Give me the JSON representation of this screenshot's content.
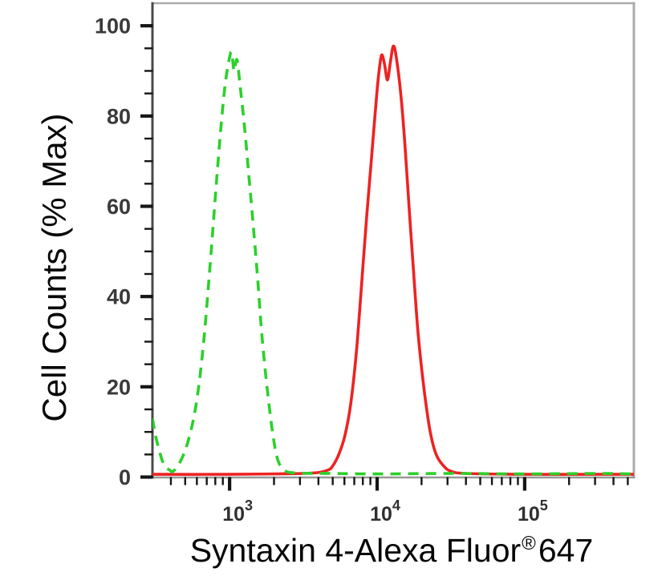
{
  "figure": {
    "ylabel": "Cell Counts (% Max)",
    "xlabel": {
      "prefix": "Syntaxin 4-Alexa Fluor",
      "registered_mark": "®",
      "suffix": "647"
    }
  },
  "chart_data": {
    "type": "line",
    "subtype": "flow-cytometry-histogram-overlay",
    "title": "",
    "xlabel": "Syntaxin 4-Alexa Fluor® 647",
    "ylabel": "Cell Counts (% Max)",
    "grid": false,
    "legend": "none",
    "x_scale": "log10",
    "x_axis": {
      "range": [
        300,
        550000
      ],
      "major_ticks": [
        1000,
        10000,
        100000
      ],
      "major_tick_labels": [
        {
          "base": "10",
          "exp": "3"
        },
        {
          "base": "10",
          "exp": "4"
        },
        {
          "base": "10",
          "exp": "5"
        }
      ],
      "minor_ticks": [
        400,
        500,
        600,
        700,
        800,
        900,
        2000,
        3000,
        4000,
        5000,
        6000,
        7000,
        8000,
        9000,
        20000,
        30000,
        40000,
        50000,
        60000,
        70000,
        80000,
        90000,
        200000,
        300000,
        400000,
        500000
      ]
    },
    "y_axis": {
      "range": [
        0,
        105
      ],
      "major_ticks": [
        0,
        20,
        40,
        60,
        80,
        100
      ],
      "major_tick_labels": [
        "0",
        "20",
        "40",
        "60",
        "80",
        "100"
      ],
      "minor_ticks": [
        5,
        10,
        15,
        25,
        30,
        35,
        45,
        50,
        55,
        65,
        70,
        75,
        85,
        90,
        95
      ]
    },
    "frame_color": "#ababab",
    "axis_color": "#4a4a4a",
    "tick_color": "#161616",
    "tick_label_color": "#3a3a3a",
    "series": [
      {
        "name": "red-solid-histogram",
        "color": "#ee2222",
        "line_style": "solid",
        "points": [
          [
            300,
            0.6
          ],
          [
            1000,
            0.6
          ],
          [
            1995,
            0.7
          ],
          [
            3162,
            0.8
          ],
          [
            3981,
            1.0
          ],
          [
            4677,
            1.6
          ],
          [
            5012,
            2.5
          ],
          [
            5495,
            5
          ],
          [
            6026,
            9
          ],
          [
            6607,
            16
          ],
          [
            7244,
            28
          ],
          [
            7943,
            45
          ],
          [
            8511,
            58
          ],
          [
            9120,
            70
          ],
          [
            9772,
            82
          ],
          [
            10233,
            89
          ],
          [
            10715,
            93.5
          ],
          [
            11220,
            91.5
          ],
          [
            11749,
            88
          ],
          [
            12303,
            92
          ],
          [
            12882,
            95.5
          ],
          [
            13490,
            93
          ],
          [
            14454,
            85
          ],
          [
            15488,
            73
          ],
          [
            16596,
            58
          ],
          [
            17783,
            44
          ],
          [
            19055,
            31
          ],
          [
            20893,
            19
          ],
          [
            22909,
            10
          ],
          [
            25119,
            5
          ],
          [
            28184,
            2.5
          ],
          [
            31623,
            1.3
          ],
          [
            39811,
            0.8
          ],
          [
            100000,
            0.6
          ],
          [
            316228,
            0.6
          ],
          [
            550000,
            0.6
          ]
        ]
      },
      {
        "name": "green-dashed-histogram",
        "color": "#2bd02b",
        "line_style": "dashed",
        "points": [
          [
            300,
            13
          ],
          [
            316,
            9
          ],
          [
            339,
            5
          ],
          [
            363,
            2.5
          ],
          [
            398,
            1.4
          ],
          [
            411,
            1.2
          ],
          [
            447,
            2.5
          ],
          [
            501,
            6
          ],
          [
            562,
            12
          ],
          [
            617,
            20
          ],
          [
            676,
            32
          ],
          [
            750,
            50
          ],
          [
            813,
            65
          ],
          [
            871,
            77
          ],
          [
            933,
            87
          ],
          [
            1000,
            93
          ],
          [
            1035,
            94
          ],
          [
            1072,
            90
          ],
          [
            1122,
            92.5
          ],
          [
            1175,
            87
          ],
          [
            1259,
            78
          ],
          [
            1349,
            67
          ],
          [
            1445,
            56
          ],
          [
            1549,
            44
          ],
          [
            1660,
            31
          ],
          [
            1820,
            18
          ],
          [
            1995,
            8
          ],
          [
            2138,
            3.5
          ],
          [
            2344,
            1.5
          ],
          [
            2818,
            0.9
          ],
          [
            5012,
            0.8
          ],
          [
            10000,
            0.7
          ],
          [
            31623,
            0.8
          ],
          [
            100000,
            0.7
          ],
          [
            316228,
            0.8
          ],
          [
            550000,
            0.7
          ]
        ]
      }
    ]
  }
}
